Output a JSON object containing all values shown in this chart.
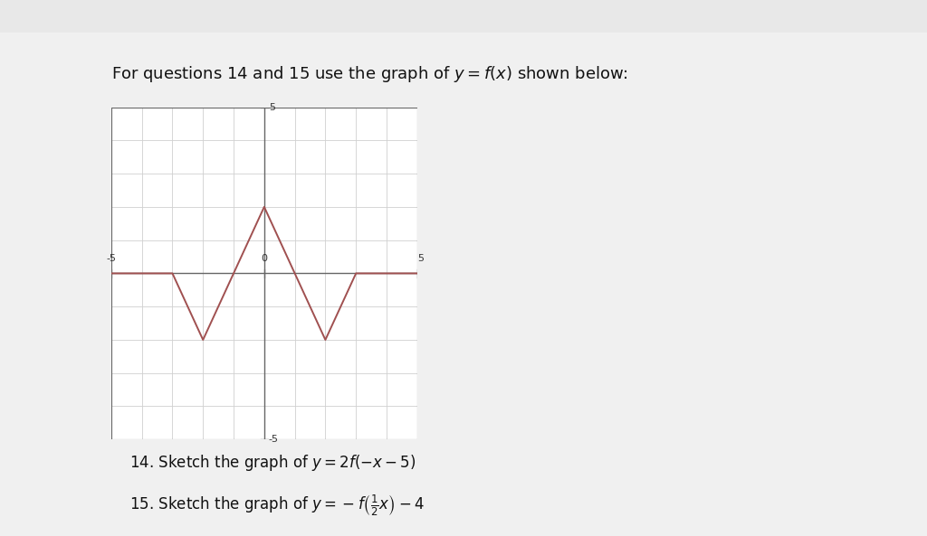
{
  "title_text": "For questions 14 and 15 use the graph of $y = f(x)$ shown below:",
  "q14_text": "14. Sketch the graph of $y = 2f(-x - 5)$",
  "q15_text": "15. Sketch the graph of $y = -f\\left(\\frac{1}{2}x\\right) - 4$",
  "xlim": [
    -5,
    5
  ],
  "ylim": [
    -5,
    5
  ],
  "grid_color": "#d0d0d0",
  "axis_color": "#666666",
  "func_color": "#a05050",
  "func_x": [
    -5,
    -3,
    -2,
    0,
    2,
    3,
    5
  ],
  "func_y": [
    0,
    0,
    -2,
    2,
    -2,
    0,
    0
  ],
  "background_color": "#f0f0f0",
  "plot_bg": "#ffffff",
  "fig_width": 10.24,
  "fig_height": 5.93,
  "title_fontsize": 13,
  "label_fontsize": 9,
  "q_fontsize": 12
}
